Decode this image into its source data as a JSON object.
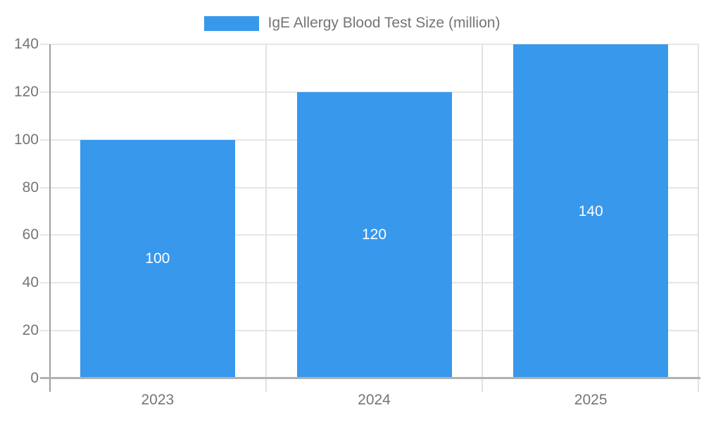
{
  "chart_data": {
    "type": "bar",
    "title": "IgE Allergy Blood Test Size (million)",
    "categories": [
      "2023",
      "2024",
      "2025"
    ],
    "values": [
      100,
      120,
      140
    ],
    "data_labels": [
      "100",
      "120",
      "140"
    ],
    "xlabel": "",
    "ylabel": "",
    "ylim": [
      0,
      140
    ],
    "yticks": [
      0,
      20,
      40,
      60,
      80,
      100,
      120,
      140
    ],
    "grid": true,
    "legend_position": "top"
  },
  "colors": {
    "bar": "#3898EC",
    "data_label_text": "#ffffff",
    "axis_text": "#757575",
    "gridline": "#e6e6e6",
    "axis_line": "#9e9e9e"
  }
}
